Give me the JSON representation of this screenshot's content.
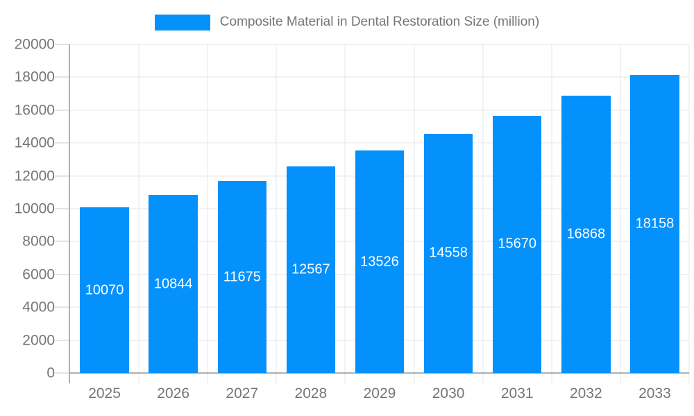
{
  "chart_data": {
    "type": "bar",
    "title": "Composite Material in Dental Restoration Size (million)",
    "legend_entries": [
      "Composite Material in Dental Restoration Size (million)"
    ],
    "legend_position": "top",
    "categories": [
      "2025",
      "2026",
      "2027",
      "2028",
      "2029",
      "2030",
      "2031",
      "2032",
      "2033"
    ],
    "series": [
      {
        "name": "Composite Material in Dental Restoration Size (million)",
        "values": [
          10070,
          10844,
          11675,
          12567,
          13526,
          14558,
          15670,
          16868,
          18158
        ]
      }
    ],
    "value_labels_shown": true,
    "xlabel": "",
    "ylabel": "",
    "ylim": [
      0,
      20000
    ],
    "yticks": [
      0,
      2000,
      4000,
      6000,
      8000,
      10000,
      12000,
      14000,
      16000,
      18000,
      20000
    ],
    "grid": true,
    "colors": {
      "bar": "#0591fb",
      "grid": "#e6e6e6",
      "axis": "#b0b0b0",
      "y_tick_mark": "#c9c9c9",
      "axis_text": "#757575",
      "value_label_text": "#ffffff",
      "background": "#ffffff"
    }
  }
}
